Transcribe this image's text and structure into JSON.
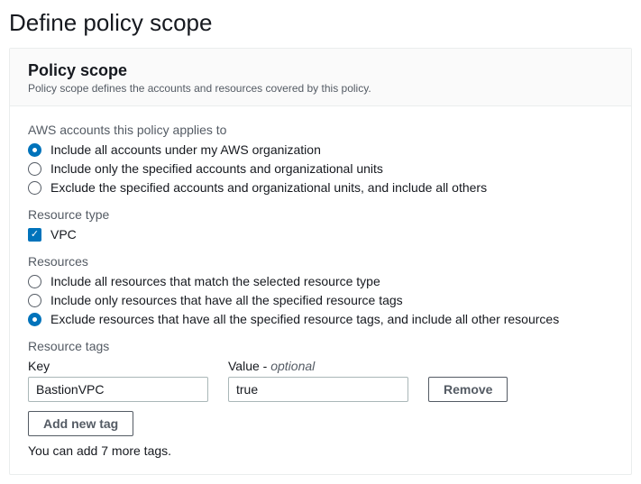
{
  "page": {
    "title": "Define policy scope"
  },
  "panel": {
    "title": "Policy scope",
    "description": "Policy scope defines the accounts and resources covered by this policy."
  },
  "accounts": {
    "label": "AWS accounts this policy applies to",
    "options": [
      "Include all accounts under my AWS organization",
      "Include only the specified accounts and organizational units",
      "Exclude the specified accounts and organizational units, and include all others"
    ],
    "selected": 0
  },
  "resource_type": {
    "label": "Resource type",
    "option": "VPC",
    "checked": true
  },
  "resources": {
    "label": "Resources",
    "options": [
      "Include all resources that match the selected resource type",
      "Include only resources that have all the specified resource tags",
      "Exclude resources that have all the specified resource tags, and include all other resources"
    ],
    "selected": 2
  },
  "tags": {
    "section_label": "Resource tags",
    "key_label": "Key",
    "value_label": "Value - ",
    "value_optional": "optional",
    "rows": [
      {
        "key": "BastionVPC",
        "value": "true"
      }
    ],
    "remove_label": "Remove",
    "add_label": "Add new tag",
    "helper": "You can add 7 more tags."
  }
}
